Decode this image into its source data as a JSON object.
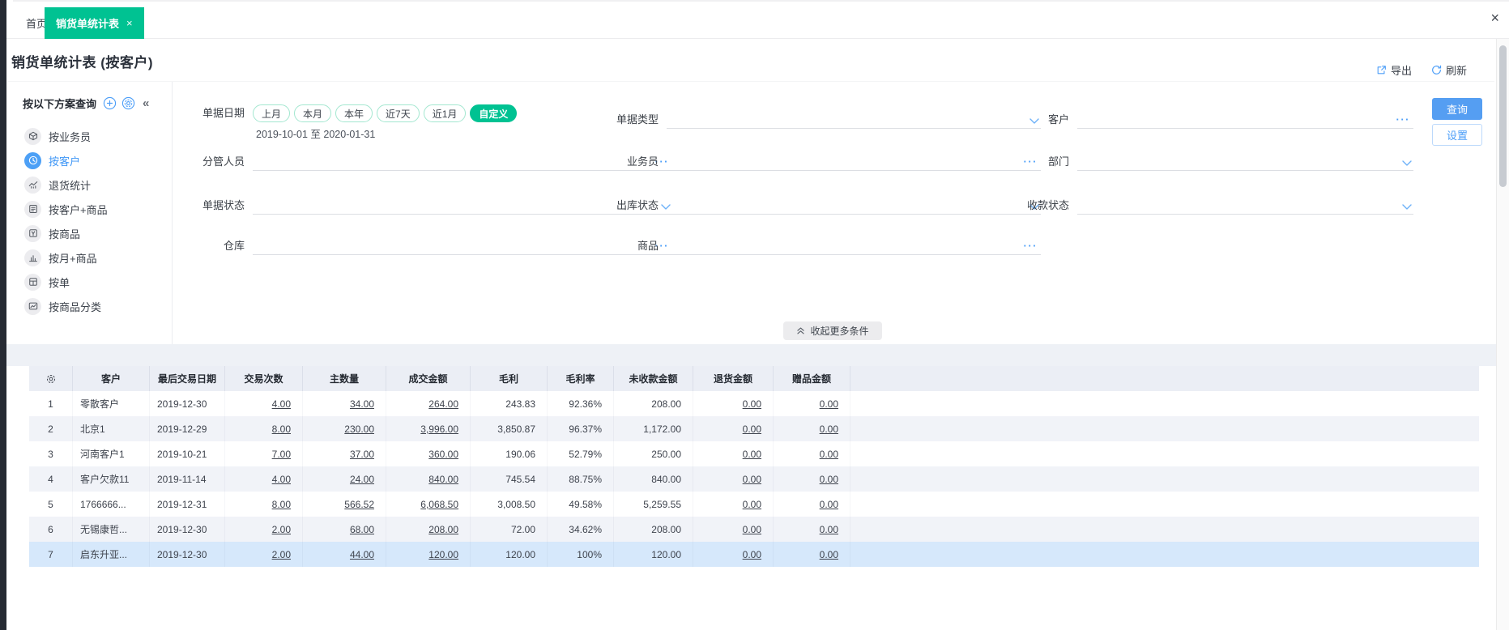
{
  "icons_text": {
    "close": "×",
    "collapse": "«",
    "ellipsis": "···"
  },
  "tabbar": {
    "home": "首页",
    "active_tab": "销货单统计表"
  },
  "page": {
    "title": "销货单统计表 (按客户)",
    "export": "导出",
    "refresh": "刷新"
  },
  "sidebar": {
    "title": "按以下方案查询",
    "items": [
      {
        "label": "按业务员",
        "icon": "cube-icon",
        "active": false
      },
      {
        "label": "按客户",
        "icon": "clock-icon",
        "active": true
      },
      {
        "label": "退货统计",
        "icon": "trend-icon",
        "active": false
      },
      {
        "label": "按客户+商品",
        "icon": "form-icon",
        "active": false
      },
      {
        "label": "按商品",
        "icon": "box-icon",
        "active": false
      },
      {
        "label": "按月+商品",
        "icon": "bar-chart-icon",
        "active": false
      },
      {
        "label": "按单",
        "icon": "grid-icon",
        "active": false
      },
      {
        "label": "按商品分类",
        "icon": "line-chart-icon",
        "active": false
      }
    ]
  },
  "filters": {
    "date": {
      "label": "单据日期",
      "pills": [
        "上月",
        "本月",
        "本年",
        "近7天",
        "近1月"
      ],
      "custom": "自定义",
      "range": "2019-10-01 至 2020-01-31"
    },
    "fields": [
      {
        "label": "单据类型",
        "suffix": "chevron",
        "col": 2,
        "row": 1
      },
      {
        "label": "客户",
        "suffix": "ellipsis",
        "col": 3,
        "row": 1
      },
      {
        "label": "分管人员",
        "suffix": "ellipsis",
        "col": 1,
        "row": 2
      },
      {
        "label": "业务员",
        "suffix": "ellipsis",
        "col": 2,
        "row": 2
      },
      {
        "label": "部门",
        "suffix": "chevron",
        "col": 3,
        "row": 2
      },
      {
        "label": "单据状态",
        "suffix": "chevron",
        "col": 1,
        "row": 3
      },
      {
        "label": "出库状态",
        "suffix": "chevron",
        "col": 2,
        "row": 3
      },
      {
        "label": "收款状态",
        "suffix": "chevron",
        "col": 3,
        "row": 3
      },
      {
        "label": "仓库",
        "suffix": "ellipsis",
        "col": 1,
        "row": 4
      },
      {
        "label": "商品",
        "suffix": "ellipsis",
        "col": 2,
        "row": 4
      }
    ],
    "query_button": "查询",
    "settings_button": "设置",
    "collapse_more": "收起更多条件"
  },
  "table": {
    "headers": [
      "客户",
      "最后交易日期",
      "交易次数",
      "主数量",
      "成交金额",
      "毛利",
      "毛利率",
      "未收款金额",
      "退货金额",
      "赠品金额"
    ],
    "rows": [
      {
        "seq": "1",
        "selected": false,
        "cells": [
          "零散客户",
          "2019-12-30",
          "4.00",
          "34.00",
          "264.00",
          "243.83",
          "92.36%",
          "208.00",
          "0.00",
          "0.00"
        ]
      },
      {
        "seq": "2",
        "selected": false,
        "cells": [
          "北京1",
          "2019-12-29",
          "8.00",
          "230.00",
          "3,996.00",
          "3,850.87",
          "96.37%",
          "1,172.00",
          "0.00",
          "0.00"
        ]
      },
      {
        "seq": "3",
        "selected": false,
        "cells": [
          "河南客户1",
          "2019-10-21",
          "7.00",
          "37.00",
          "360.00",
          "190.06",
          "52.79%",
          "250.00",
          "0.00",
          "0.00"
        ]
      },
      {
        "seq": "4",
        "selected": false,
        "cells": [
          "客户欠款11",
          "2019-11-14",
          "4.00",
          "24.00",
          "840.00",
          "745.54",
          "88.75%",
          "840.00",
          "0.00",
          "0.00"
        ]
      },
      {
        "seq": "5",
        "selected": false,
        "cells": [
          "1766666...",
          "2019-12-31",
          "8.00",
          "566.52",
          "6,068.50",
          "3,008.50",
          "49.58%",
          "5,259.55",
          "0.00",
          "0.00"
        ]
      },
      {
        "seq": "6",
        "selected": false,
        "cells": [
          "无锡康哲...",
          "2019-12-30",
          "2.00",
          "68.00",
          "208.00",
          "72.00",
          "34.62%",
          "208.00",
          "0.00",
          "0.00"
        ]
      },
      {
        "seq": "7",
        "selected": true,
        "cells": [
          "启东升亚...",
          "2019-12-30",
          "2.00",
          "44.00",
          "120.00",
          "120.00",
          "100%",
          "120.00",
          "0.00",
          "0.00"
        ]
      }
    ]
  },
  "colors": {
    "accent_green": "#00c292",
    "accent_blue": "#4c9ef8",
    "selected_row": "#d6e8fb"
  }
}
